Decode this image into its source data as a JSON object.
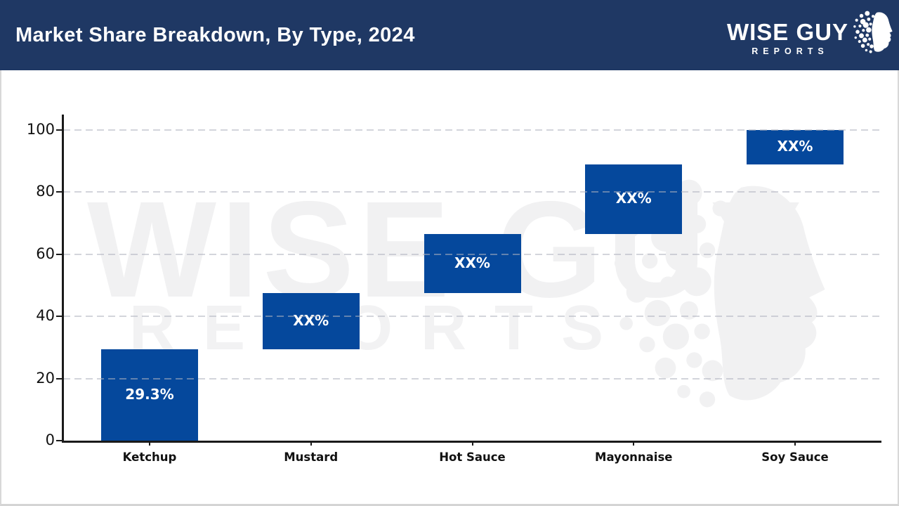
{
  "header": {
    "title": "Market Share Breakdown, By Type, 2024",
    "logo": {
      "line1": "WISE GUY",
      "line2": "REPORTS"
    }
  },
  "watermark": {
    "line1": "WISE GUY",
    "line2": "REPORTS"
  },
  "colors": {
    "header_bg": "#1f3864",
    "bar": "#05489c",
    "bar_label": "#ffffff",
    "grid": "#d9dae2",
    "axis": "#1a1a1a",
    "watermark": "#f1f1f2"
  },
  "chart_data": {
    "type": "bar",
    "subtype": "waterfall",
    "title": "Market Share Breakdown, By Type, 2024",
    "categories": [
      "Ketchup",
      "Mustard",
      "Hot Sauce",
      "Mayonnaise",
      "Soy Sauce"
    ],
    "segments": [
      {
        "category": "Ketchup",
        "start": 0,
        "end": 29.3,
        "label": "29.3%"
      },
      {
        "category": "Mustard",
        "start": 29.3,
        "end": 47.5,
        "label": "XX%"
      },
      {
        "category": "Hot Sauce",
        "start": 47.5,
        "end": 66.5,
        "label": "XX%"
      },
      {
        "category": "Mayonnaise",
        "start": 66.5,
        "end": 89,
        "label": "XX%"
      },
      {
        "category": "Soy Sauce",
        "start": 89,
        "end": 100,
        "label": "XX%"
      }
    ],
    "xlabel": "",
    "ylabel": "",
    "ylim": [
      0,
      100
    ],
    "yticks": [
      0,
      20,
      40,
      60,
      80,
      100
    ],
    "grid": "horizontal-dashed-over-bars",
    "legend": "none"
  }
}
